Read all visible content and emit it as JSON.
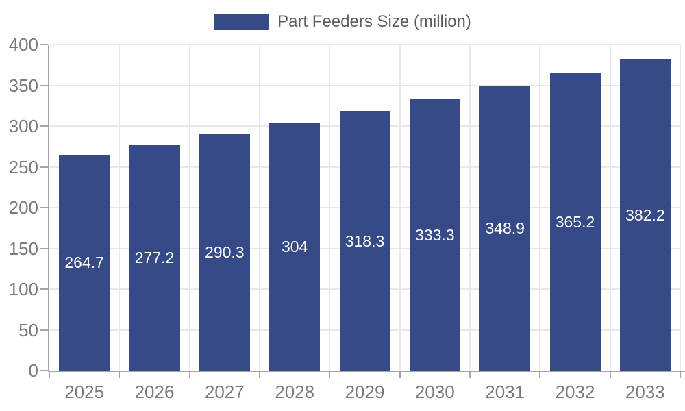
{
  "chart_data": {
    "type": "bar",
    "title": "Part Feeders Size (million)",
    "legend": {
      "label": "Part Feeders Size (million)",
      "position": "top-center"
    },
    "categories": [
      "2025",
      "2026",
      "2027",
      "2028",
      "2029",
      "2030",
      "2031",
      "2032",
      "2033"
    ],
    "series": [
      {
        "name": "Part Feeders Size (million)",
        "values": [
          264.7,
          277.2,
          290.3,
          304,
          318.3,
          333.3,
          348.9,
          365.2,
          382.2
        ],
        "value_labels": [
          "264.7",
          "277.2",
          "290.3",
          "304",
          "318.3",
          "333.3",
          "348.9",
          "365.2",
          "382.2"
        ]
      }
    ],
    "xlabel": "",
    "ylabel": "",
    "ylim": [
      0,
      400
    ],
    "yticks": [
      0,
      50,
      100,
      150,
      200,
      250,
      300,
      350,
      400
    ],
    "grid": true,
    "colors": {
      "bar": "#354a87",
      "value_label": "#ffffff",
      "axis_line": "#a6a6a6",
      "tick_mark": "#a6a6a6",
      "gridline": "#e8e8e8",
      "axis_tick_label": "#7a7a7a",
      "legend_text": "#5c5c5c",
      "background": "#ffffff"
    }
  }
}
